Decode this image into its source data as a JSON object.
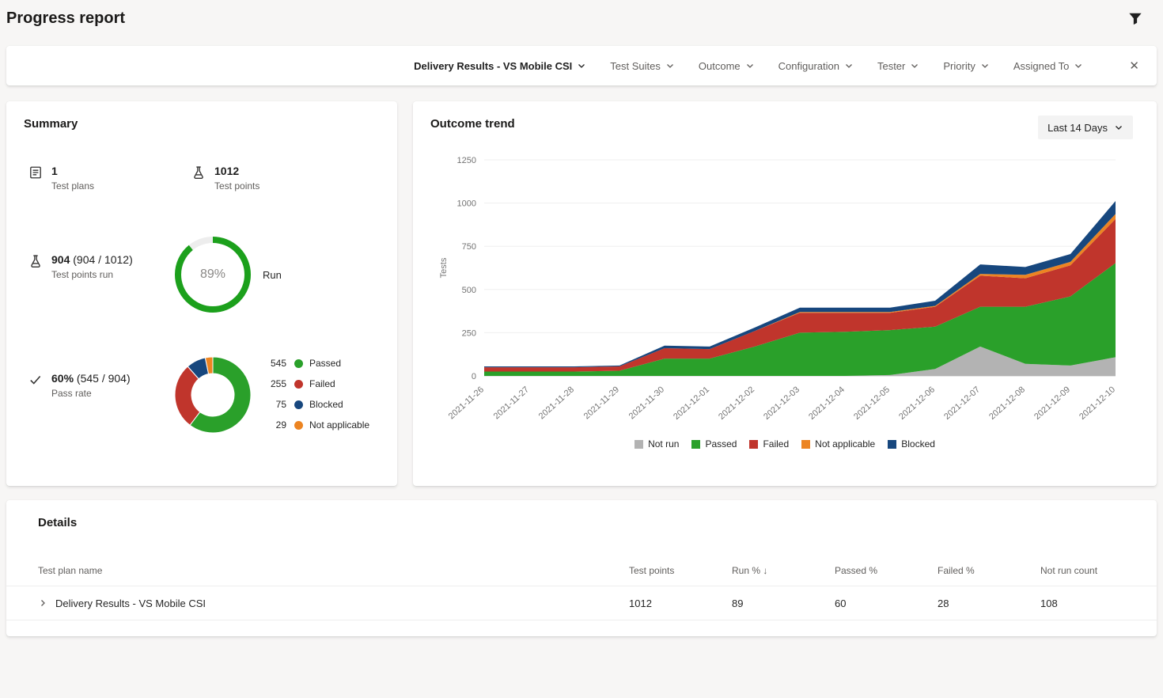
{
  "page": {
    "title": "Progress report"
  },
  "filter_bar": {
    "primary": "Delivery Results - VS Mobile CSI",
    "dropdowns": [
      "Test Suites",
      "Outcome",
      "Configuration",
      "Tester",
      "Priority",
      "Assigned To"
    ]
  },
  "summary": {
    "title": "Summary",
    "test_plans": {
      "value": "1",
      "label": "Test plans"
    },
    "test_points": {
      "value": "1012",
      "label": "Test points"
    },
    "test_points_run": {
      "value": "904",
      "detail": " (904 / 1012)",
      "label": "Test points run"
    },
    "run_ring": {
      "percent": 89,
      "percent_label": "89%",
      "label": "Run",
      "color": "#1ca01c",
      "track_color": "#ededed"
    },
    "pass_rate": {
      "value": "60%",
      "detail": " (545 / 904)",
      "label": "Pass rate"
    },
    "outcome_donut": {
      "segments": [
        {
          "label": "Passed",
          "value": 545,
          "color": "#2aa02a"
        },
        {
          "label": "Failed",
          "value": 255,
          "color": "#c0352c"
        },
        {
          "label": "Blocked",
          "value": 75,
          "color": "#17477e"
        },
        {
          "label": "Not applicable",
          "value": 29,
          "color": "#ec8422"
        }
      ],
      "legend_order": [
        "Passed",
        "Failed",
        "Blocked",
        "Not applicable"
      ]
    }
  },
  "trend": {
    "title": "Outcome trend",
    "range_button": "Last 14 Days"
  },
  "chart_data": {
    "type": "area",
    "stacked": true,
    "title": "Outcome trend",
    "xlabel": "",
    "ylabel": "Tests",
    "ylim": [
      0,
      1250
    ],
    "yticks": [
      0,
      250,
      500,
      750,
      1000,
      1250
    ],
    "grid": true,
    "legend_position": "bottom",
    "x": [
      "2021-11-26",
      "2021-11-27",
      "2021-11-28",
      "2021-11-29",
      "2021-11-30",
      "2021-12-01",
      "2021-12-02",
      "2021-12-03",
      "2021-12-04",
      "2021-12-05",
      "2021-12-06",
      "2021-12-07",
      "2021-12-08",
      "2021-12-09",
      "2021-12-10"
    ],
    "series": [
      {
        "name": "Not run",
        "color": "#b3b3b3",
        "values": [
          0,
          0,
          0,
          0,
          0,
          0,
          0,
          0,
          0,
          5,
          40,
          170,
          70,
          60,
          108
        ]
      },
      {
        "name": "Passed",
        "color": "#2aa02a",
        "values": [
          25,
          25,
          25,
          30,
          100,
          100,
          170,
          250,
          255,
          260,
          245,
          230,
          330,
          400,
          545
        ]
      },
      {
        "name": "Failed",
        "color": "#c0352c",
        "values": [
          25,
          25,
          25,
          25,
          60,
          55,
          90,
          115,
          110,
          100,
          115,
          180,
          165,
          180,
          255
        ]
      },
      {
        "name": "Not applicable",
        "color": "#ec8422",
        "values": [
          0,
          0,
          0,
          0,
          0,
          0,
          0,
          5,
          5,
          5,
          5,
          10,
          20,
          20,
          29
        ]
      },
      {
        "name": "Blocked",
        "color": "#17477e",
        "values": [
          5,
          5,
          5,
          5,
          15,
          15,
          20,
          25,
          25,
          25,
          30,
          55,
          45,
          45,
          75
        ]
      }
    ],
    "legend": [
      "Not run",
      "Passed",
      "Failed",
      "Not applicable",
      "Blocked"
    ]
  },
  "details": {
    "title": "Details",
    "columns": [
      "Test plan name",
      "Test points",
      "Run % ↓",
      "Passed %",
      "Failed %",
      "Not run count"
    ],
    "rows": [
      {
        "name": "Delivery Results - VS Mobile CSI",
        "cells": [
          "1012",
          "89",
          "60",
          "28",
          "108"
        ]
      }
    ]
  }
}
